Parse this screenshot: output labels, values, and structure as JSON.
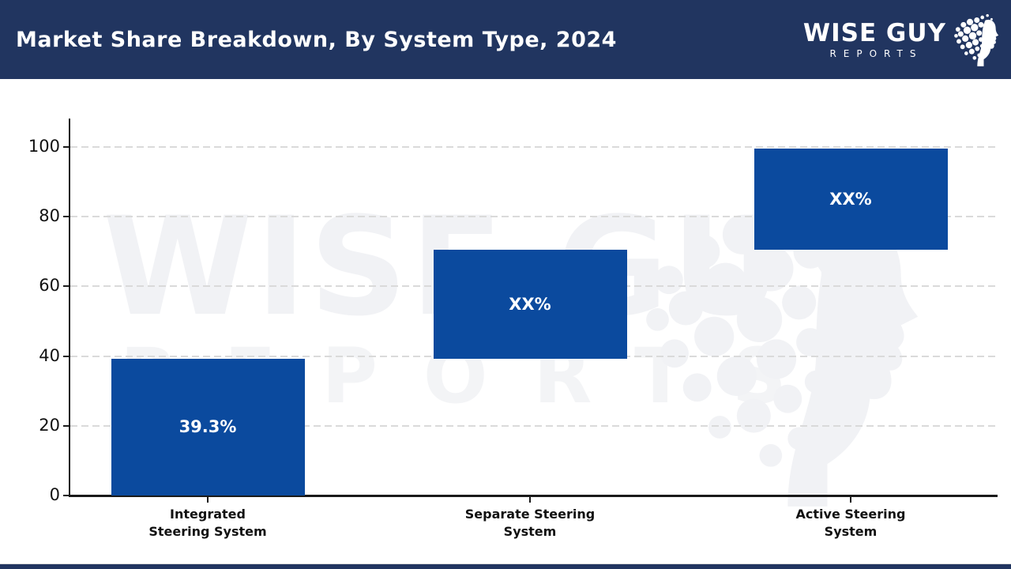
{
  "header": {
    "title": "Market Share Breakdown, By System Type, 2024",
    "brand": {
      "name": "WISE GUY",
      "sub": "REPORTS"
    },
    "bg_color": "#213560"
  },
  "watermark": {
    "line1": "WISE GUY",
    "line2": "REPORTS"
  },
  "chart_data": {
    "type": "bar",
    "subtype": "floating-segment-breakdown",
    "title": "Market Share Breakdown, By System Type, 2024",
    "categories": [
      "Integrated Steering System",
      "Separate Steering System",
      "Active Steering System"
    ],
    "category_label_lines": [
      [
        "Integrated",
        "Steering System"
      ],
      [
        "Separate Steering",
        "System"
      ],
      [
        "Active Steering",
        "System"
      ]
    ],
    "segments": [
      {
        "category": "Integrated Steering System",
        "start": 0,
        "end": 39.3,
        "label": "39.3%"
      },
      {
        "category": "Separate Steering System",
        "start": 39.3,
        "end": 70.6,
        "label": "XX%"
      },
      {
        "category": "Active Steering System",
        "start": 70.6,
        "end": 99.5,
        "label": "XX%"
      }
    ],
    "yticks": [
      0,
      20,
      40,
      60,
      80,
      100
    ],
    "ylim": [
      0,
      108
    ],
    "xlabel": "",
    "ylabel": "",
    "grid": "dashed-horizontal",
    "legend": "none",
    "bar_color": "#0b4a9e",
    "bar_label_color": "#ffffff",
    "axis_color": "#1a1a1a",
    "grid_color": "#dadada"
  }
}
